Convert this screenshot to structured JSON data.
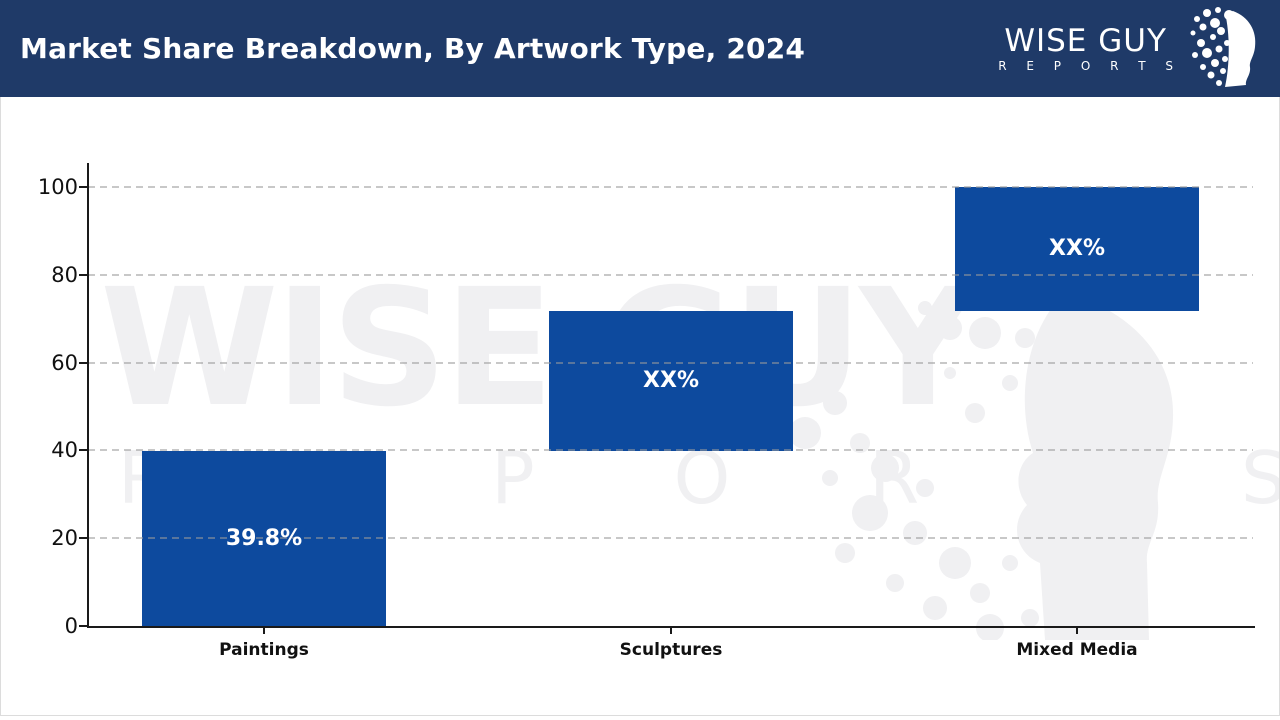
{
  "header": {
    "title": "Market Share Breakdown, By Artwork Type, 2024",
    "logo": {
      "line1": "WISE GUY",
      "line2": "R E P O R T S"
    }
  },
  "watermark": {
    "line1": "WISE GUY",
    "line2": "R E P O R T S"
  },
  "icons": {
    "logo_head": "wiseguy-head-icon",
    "watermark_head": "wiseguy-head-watermark-icon"
  },
  "colors": {
    "header_bg": "#1F3A68",
    "bar": "#0D4A9E",
    "bar_label": "#FFFFFF",
    "grid": "#9A9A9A",
    "watermark": "#F0F0F2",
    "axis": "#1A1A1A"
  },
  "chart_data": {
    "type": "bar",
    "subtype": "waterfall-stacked-percent",
    "title": "Market Share Breakdown, By Artwork Type, 2024",
    "categories": [
      "Paintings",
      "Sculptures",
      "Mixed Media"
    ],
    "bars": [
      {
        "category": "Paintings",
        "start": 0,
        "end": 39.8,
        "label": "39.8%"
      },
      {
        "category": "Sculptures",
        "start": 39.8,
        "end": 71.8,
        "label": "XX%"
      },
      {
        "category": "Mixed Media",
        "start": 71.8,
        "end": 100,
        "label": "XX%"
      }
    ],
    "xlabel": "",
    "ylabel": "",
    "ylim": [
      0,
      100
    ],
    "yticks": [
      0,
      20,
      40,
      60,
      80,
      100
    ],
    "grid": "horizontal-dashed",
    "legend": "none"
  }
}
